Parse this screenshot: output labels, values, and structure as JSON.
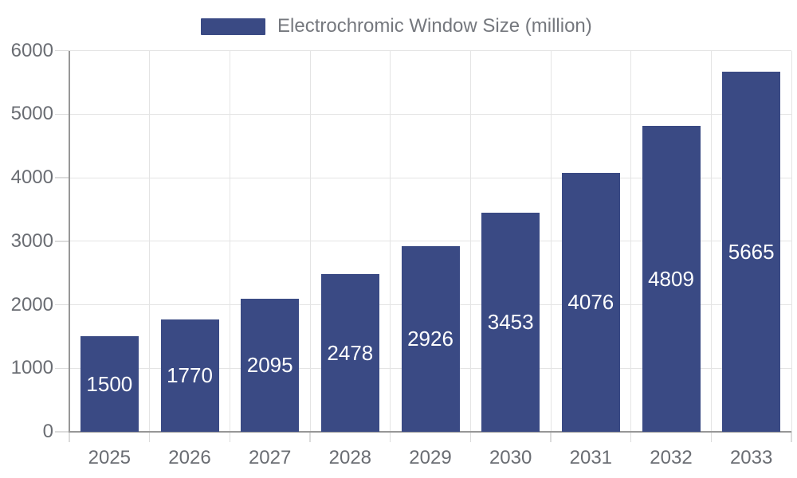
{
  "legend": {
    "label": "Electrochromic Window Size (million)"
  },
  "colors": {
    "bar": "#3A4A84",
    "axis_line": "#979797",
    "grid_line": "#E4E4E4",
    "tick": "#DCDCDC",
    "axis_label": "#6A6D73",
    "legend_label": "#75787E",
    "value_label": "#FFFFFF",
    "background": "#FFFFFF"
  },
  "chart_data": {
    "type": "bar",
    "title": "",
    "xlabel": "",
    "ylabel": "",
    "categories": [
      "2025",
      "2026",
      "2027",
      "2028",
      "2029",
      "2030",
      "2031",
      "2032",
      "2033"
    ],
    "series": [
      {
        "name": "Electrochromic Window Size (million)",
        "values": [
          1500,
          1770,
          2095,
          2478,
          2926,
          3453,
          4076,
          4809,
          5665
        ]
      }
    ],
    "ylim": [
      0,
      6000
    ],
    "yticks": [
      0,
      1000,
      2000,
      3000,
      4000,
      5000,
      6000
    ],
    "grid": true,
    "legend_position": "top",
    "value_label_position": "inside-center"
  }
}
